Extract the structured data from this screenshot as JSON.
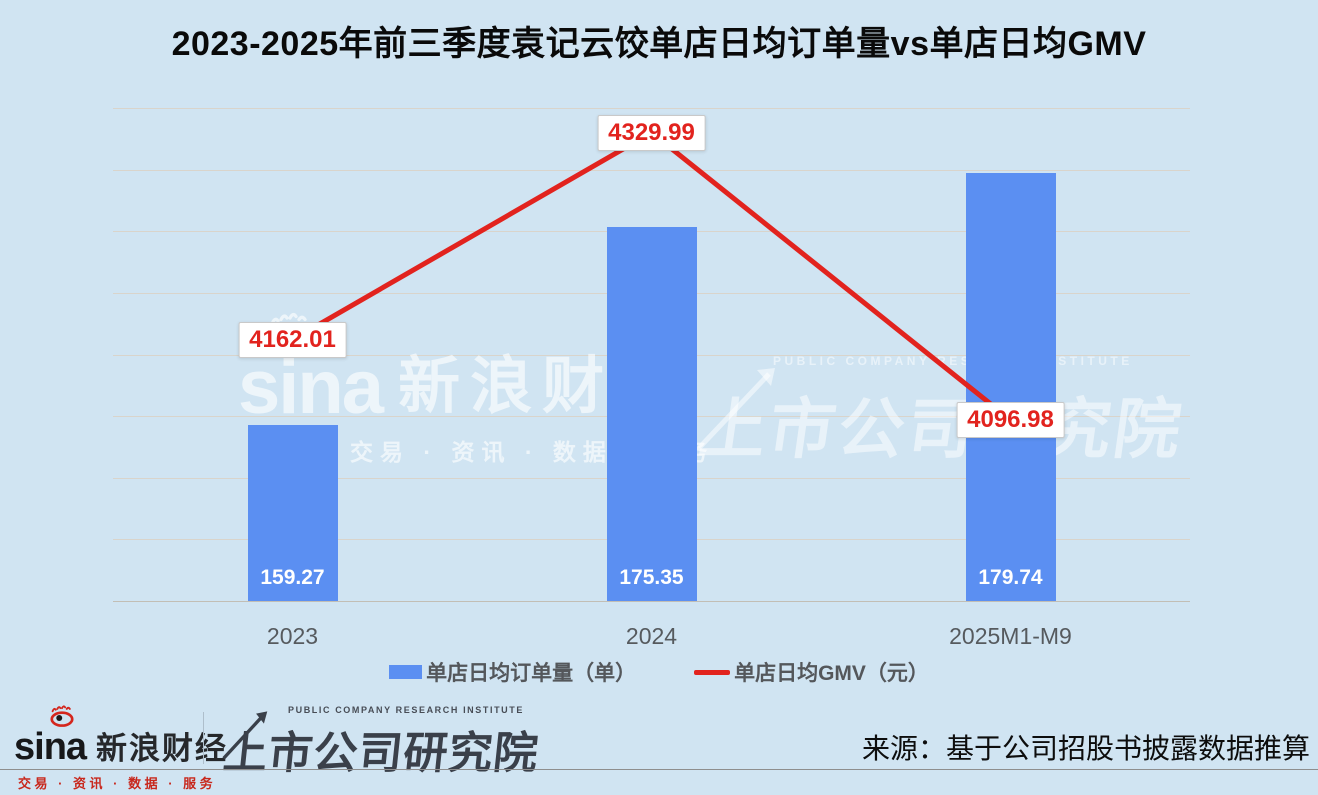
{
  "title": "2023-2025年前三季度袁记云饺单店日均订单量vs单店日均GMV",
  "chart_data": {
    "type": "combo-bar-line",
    "categories": [
      "2023",
      "2024",
      "2025M1-M9"
    ],
    "series": [
      {
        "name": "单店日均订单量（单）",
        "type": "bar",
        "values": [
          159.27,
          175.35,
          179.74
        ],
        "labels": [
          "159.27",
          "175.35",
          "179.74"
        ],
        "color": "#5B8FF2",
        "axis_range": [
          145,
          185
        ]
      },
      {
        "name": "单店日均GMV（元）",
        "type": "line",
        "values": [
          4162.01,
          4329.99,
          4096.98
        ],
        "labels": [
          "4162.01",
          "4329.99",
          "4096.98"
        ],
        "color": "#E2231E",
        "axis_range": [
          3950,
          4350
        ]
      }
    ],
    "grid": true,
    "gridline_count": 9,
    "legend_position": "bottom",
    "axes_hidden": true
  },
  "watermarks": {
    "sina_word": "sina",
    "sina_cn": "新浪财经",
    "sina_tagline": "交易 · 资讯 · 数据 · 服务",
    "institute_en": "PUBLIC COMPANY RESEARCH INSTITUTE",
    "institute_cn": "上市公司研究院"
  },
  "footer": {
    "sina_word": "sina",
    "sina_cn": "新浪财经",
    "sina_tagline": "交易 · 资讯 · 数据 · 服务",
    "institute_en": "PUBLIC COMPANY RESEARCH INSTITUTE",
    "institute_cn": "上市公司研究院",
    "source": "来源：基于公司招股书披露数据推算"
  },
  "colors": {
    "background": "#D0E4F2",
    "bar": "#5B8FF2",
    "line": "#E2231E",
    "point_label_text": "#E2231E",
    "gridline": "#D9D4CB",
    "axis_label": "#565A5E",
    "legend_label": "#54575B"
  }
}
